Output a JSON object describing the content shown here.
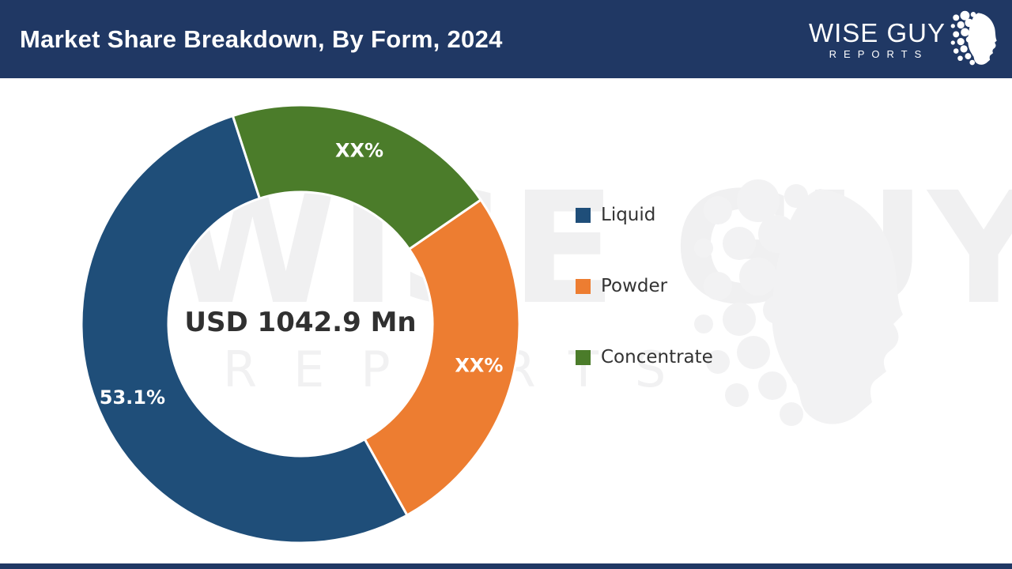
{
  "header": {
    "title": "Market Share Breakdown, By Form, 2024",
    "logo": {
      "brand": "WISE GUY",
      "sub": "REPORTS"
    }
  },
  "watermark": {
    "line1": "WISE GUY",
    "line2": "REPORTS"
  },
  "chart_data": {
    "type": "pie",
    "donut": true,
    "title": "Market Share Breakdown, By Form, 2024",
    "center_label": "USD 1042.9 Mn",
    "legend_position": "right",
    "start_angle_deg": 108,
    "direction": "counterclockwise",
    "segments": [
      {
        "label": "Liquid",
        "display_label": "53.1%",
        "value_pct": 53.1,
        "color": "#1f4e79"
      },
      {
        "label": "Powder",
        "display_label": "XX%",
        "value_pct": 26.5,
        "color": "#ed7d31"
      },
      {
        "label": "Concentrate",
        "display_label": "XX%",
        "value_pct": 20.4,
        "color": "#4b7c2a"
      }
    ]
  },
  "colors": {
    "header_bg": "#203864",
    "footer_bg": "#203864",
    "watermark": "#f1f1f2",
    "center_text": "#303030",
    "legend_text": "#333333"
  }
}
